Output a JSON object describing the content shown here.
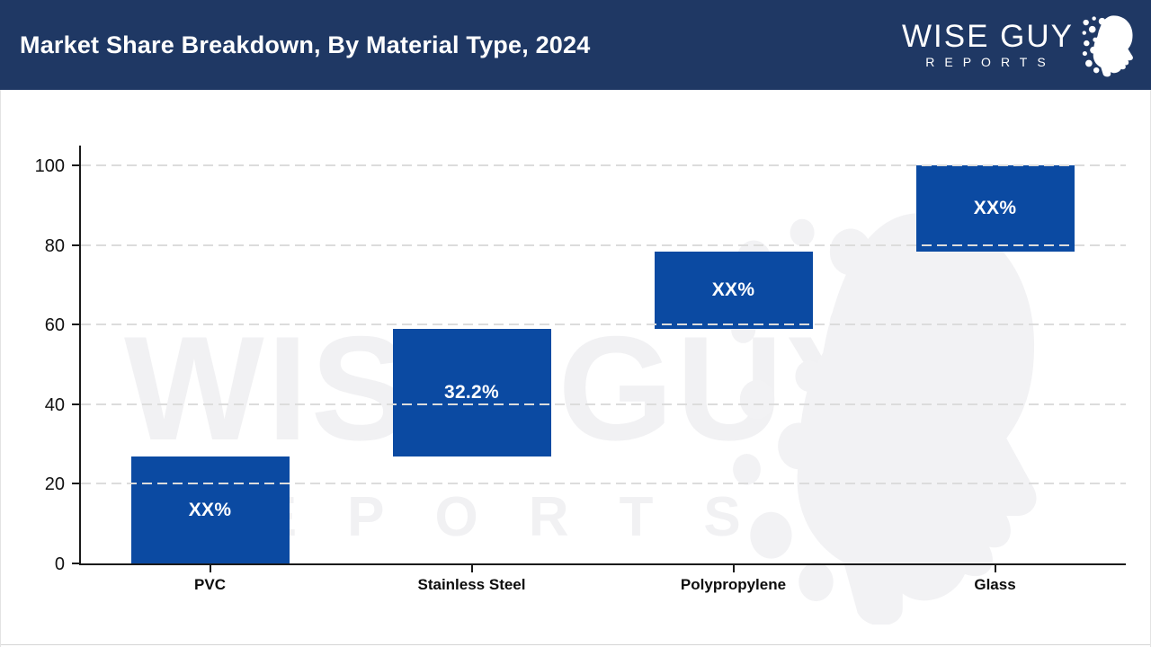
{
  "header": {
    "title": "Market Share Breakdown, By Material Type, 2024",
    "logo": {
      "wordmark": "WISE GUY",
      "subtext": "REPORTS"
    }
  },
  "watermark": {
    "line1": "WISE GUY",
    "line2": "REPORTS"
  },
  "chart_data": {
    "type": "bar",
    "subtype": "waterfall-floating-bars",
    "title": "Market Share Breakdown, By Material Type, 2024",
    "categories": [
      "PVC",
      "Stainless Steel",
      "Polypropylene",
      "Glass"
    ],
    "segments": [
      {
        "category": "PVC",
        "start": 0,
        "end": 26.8,
        "label": "XX%"
      },
      {
        "category": "Stainless Steel",
        "start": 26.8,
        "end": 59.0,
        "label": "32.2%"
      },
      {
        "category": "Polypropylene",
        "start": 59.0,
        "end": 78.3,
        "label": "XX%"
      },
      {
        "category": "Glass",
        "start": 78.3,
        "end": 100,
        "label": "XX%"
      }
    ],
    "yticks": [
      0,
      20,
      40,
      60,
      80,
      100
    ],
    "ylim": [
      0,
      105
    ],
    "xlabel": "",
    "ylabel": "",
    "grid": "horizontal-dashed",
    "legend": "none"
  },
  "colors": {
    "header_bg": "#1F3864",
    "bar": "#0B4AA2",
    "bar_label": "#FFFFFF",
    "grid": "#DCDCDC",
    "axis": "#1A1A1A",
    "watermark": "#F1F1F3",
    "page_bg": "#FFFFFF"
  }
}
